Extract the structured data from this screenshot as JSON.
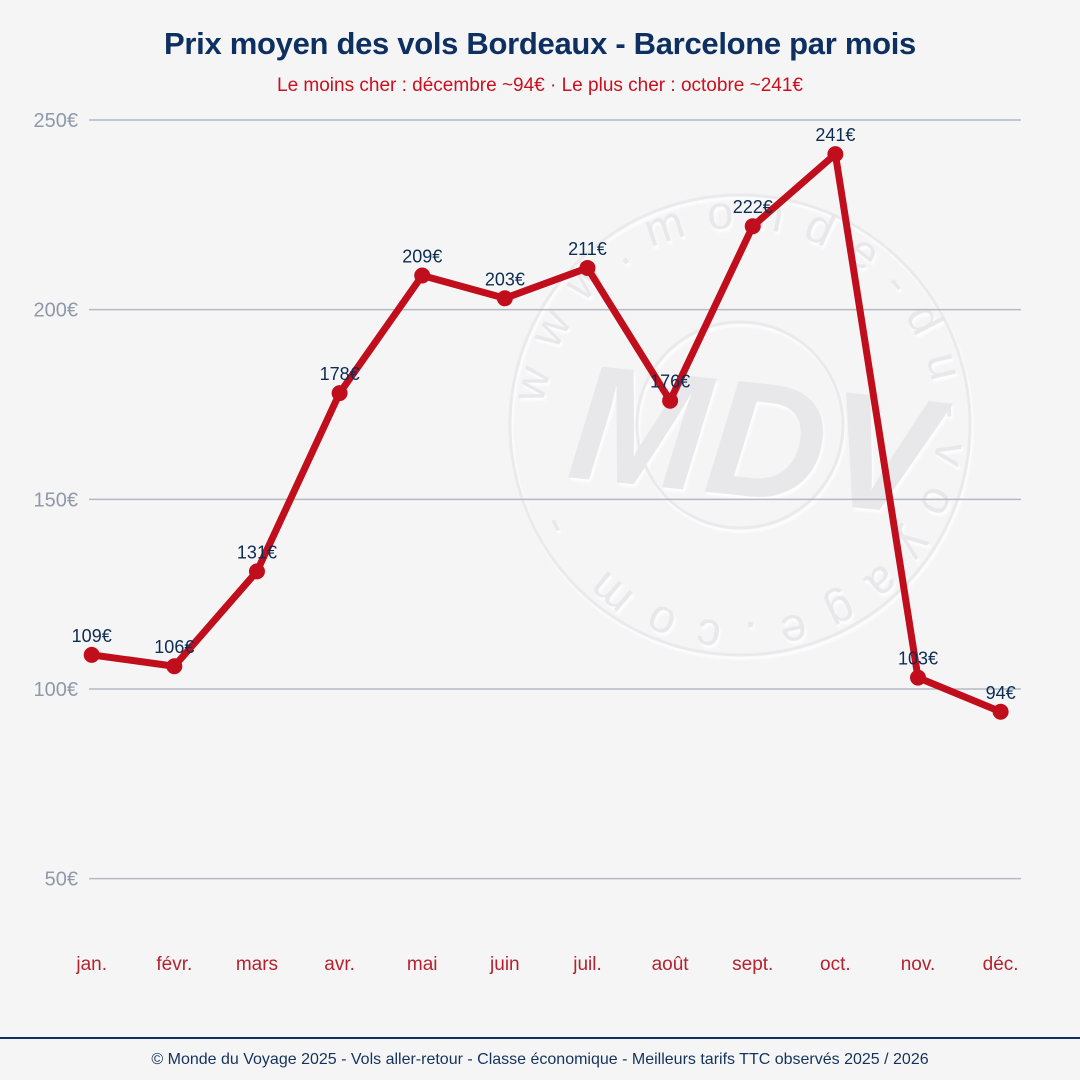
{
  "page": {
    "title": "Prix moyen des vols Bordeaux - Barcelone par mois",
    "subtitle": "Le moins cher : décembre ~94€ · Le plus cher : octobre ~241€",
    "footer": "© Monde du Voyage 2025 - Vols aller-retour - Classe économique - Meilleurs tarifs TTC observés 2025 / 2026"
  },
  "watermark": {
    "ring_text": "www.monde-du-voyage.com -",
    "center_text": "MDV"
  },
  "colors": {
    "background": "#f5f5f6",
    "title": "#0e3060",
    "subtitle": "#ca101f",
    "line": "#c10e1c",
    "point": "#c10e1c",
    "point_label": "#0d2c52",
    "month_label": "#b5222e",
    "tick_label": "#8f99a9",
    "gridline": "#b4bac4",
    "footer": "#14335c",
    "footer_divider": "#10305e"
  },
  "chart_data": {
    "type": "line",
    "title": "Prix moyen des vols Bordeaux - Barcelone par mois",
    "subtitle": "Le moins cher : décembre ~94€ · Le plus cher : octobre ~241€",
    "categories": [
      "jan.",
      "févr.",
      "mars",
      "avr.",
      "mai",
      "juin",
      "juil.",
      "août",
      "sept.",
      "oct.",
      "nov.",
      "déc."
    ],
    "values": [
      109,
      106,
      131,
      178,
      209,
      203,
      211,
      176,
      222,
      241,
      103,
      94
    ],
    "value_labels": [
      "109€",
      "106€",
      "131€",
      "178€",
      "209€",
      "203€",
      "211€",
      "176€",
      "222€",
      "241€",
      "103€",
      "94€"
    ],
    "unit": "€",
    "xlabel": "",
    "ylabel": "",
    "y_ticks": [
      250,
      200,
      150,
      100,
      50
    ],
    "y_tick_labels": [
      "250€",
      "200€",
      "150€",
      "100€",
      "50€"
    ],
    "ylim": [
      30,
      265
    ],
    "grid": true,
    "legend_position": "none",
    "min_note": {
      "month": "décembre",
      "value": 94
    },
    "max_note": {
      "month": "octobre",
      "value": 241
    }
  }
}
